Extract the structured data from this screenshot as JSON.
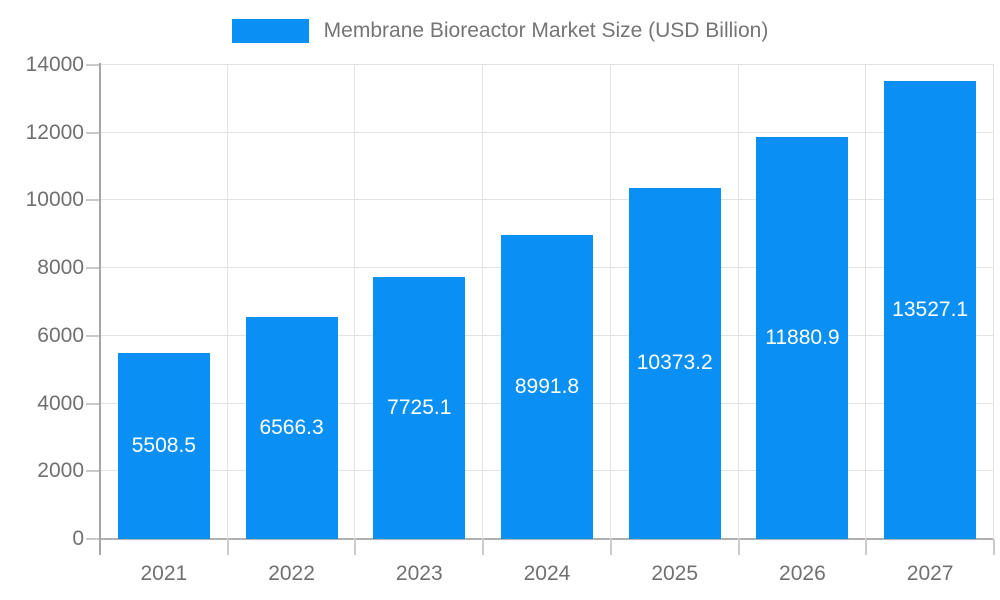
{
  "chart": {
    "background": "#ffffff"
  },
  "chart_data": {
    "type": "bar",
    "title": "Membrane Bioreactor Market Size (USD Billion)",
    "categories": [
      "2021",
      "2022",
      "2023",
      "2024",
      "2025",
      "2026",
      "2027"
    ],
    "values": [
      5508.5,
      6566.3,
      7725.1,
      8991.8,
      10373.2,
      11880.9,
      13527.1
    ],
    "value_labels": [
      "5508.5",
      "6566.3",
      "7725.1",
      "8991.8",
      "10373.2",
      "11880.9",
      "13527.1"
    ],
    "xlabel": "",
    "ylabel": "",
    "ylim": [
      0,
      14000
    ],
    "yticks": [
      0,
      2000,
      4000,
      6000,
      8000,
      10000,
      12000,
      14000
    ],
    "ytick_labels": [
      "0",
      "2000",
      "4000",
      "6000",
      "8000",
      "10000",
      "12000",
      "14000"
    ],
    "grid": true,
    "legend_position": "top",
    "value_label_position": "inside-center",
    "colors": {
      "bar": "#0a90f4",
      "value_label": "#ffffff",
      "axis_text": "#707070",
      "legend_text": "#757575",
      "gridline": "#e3e3e3",
      "axis_line": "#a6a6a6",
      "zero_line": "#b0b0b0",
      "tick_mark": "#c9c9c9"
    }
  }
}
